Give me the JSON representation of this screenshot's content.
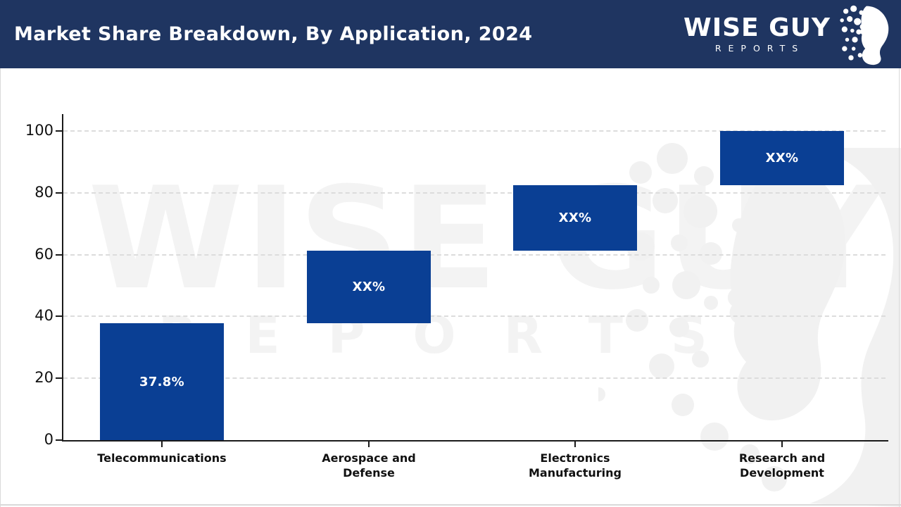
{
  "header": {
    "title": "Market Share Breakdown, By Application, 2024",
    "bg_color": "#1f3561"
  },
  "logo": {
    "line1": "WISE GUY",
    "line2": "REPORTS"
  },
  "watermark": {
    "line1": "WISE GUY",
    "line2": "REPORTS"
  },
  "chart_data": {
    "type": "bar",
    "variant": "waterfall-stacked-percent",
    "title": "Market Share Breakdown, By Application, 2024",
    "categories": [
      "Telecommunications",
      "Aerospace and Defense",
      "Electronics Manufacturing",
      "Research and Development"
    ],
    "categories_lines": [
      [
        "Telecommunications"
      ],
      [
        "Aerospace and",
        "Defense"
      ],
      [
        "Electronics",
        "Manufacturing"
      ],
      [
        "Research and",
        "Development"
      ]
    ],
    "segments": [
      {
        "category": "Telecommunications",
        "start": 0,
        "end": 37.8,
        "label": "37.8%"
      },
      {
        "category": "Aerospace and Defense",
        "start": 37.8,
        "end": 61.2,
        "label": "XX%"
      },
      {
        "category": "Electronics Manufacturing",
        "start": 61.2,
        "end": 82.5,
        "label": "XX%"
      },
      {
        "category": "Research and Development",
        "start": 82.5,
        "end": 100,
        "label": "XX%"
      }
    ],
    "yticks": [
      0,
      20,
      40,
      60,
      80,
      100
    ],
    "ylim": [
      0,
      100
    ],
    "xlabel": "",
    "ylabel": "",
    "grid": "horizontal-dashed",
    "legend": "none",
    "bar_color": "#0a3f94",
    "bar_label_color": "#ffffff",
    "axis_color": "#1a1a1a",
    "gridline_color": "#dcdcdc"
  }
}
